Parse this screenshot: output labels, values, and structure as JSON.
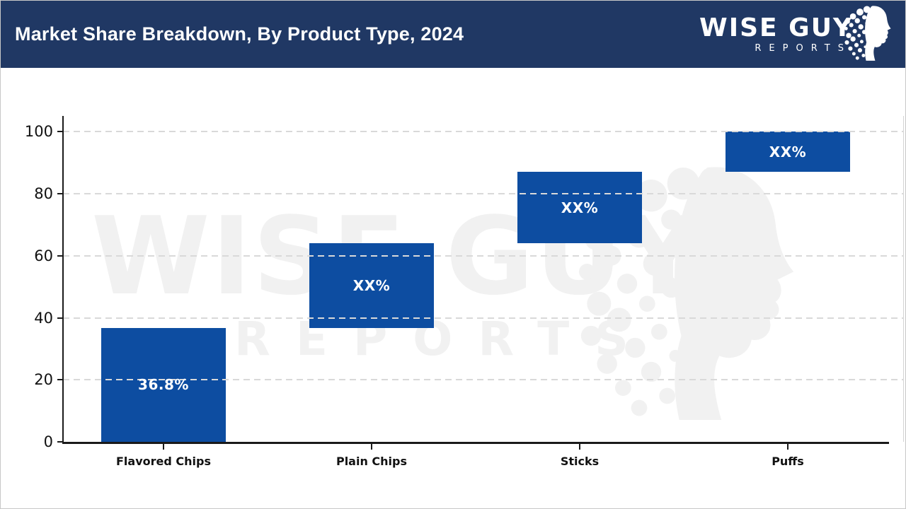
{
  "header": {
    "title": "Market Share Breakdown, By Product Type, 2024",
    "logo": {
      "line1": "WISE GUY",
      "line2": "REPORTS"
    }
  },
  "watermark": {
    "line1": "WISE GUY",
    "line2": "REPORTS"
  },
  "colors": {
    "header_bg": "#203864",
    "bar": "#0d4da1",
    "grid": "#d9d9d9",
    "axis": "#1a1a1a",
    "watermark": "#f1f1f1",
    "bar_label": "#ffffff"
  },
  "chart_data": {
    "type": "waterfall",
    "title": "Market Share Breakdown, By Product Type, 2024",
    "categories": [
      "Flavored Chips",
      "Plain Chips",
      "Sticks",
      "Puffs"
    ],
    "segments": [
      {
        "category": "Flavored Chips",
        "from": 0,
        "to": 36.8,
        "label": "36.8%"
      },
      {
        "category": "Plain Chips",
        "from": 36.8,
        "to": 64,
        "label": "XX%"
      },
      {
        "category": "Sticks",
        "from": 64,
        "to": 87,
        "label": "XX%"
      },
      {
        "category": "Puffs",
        "from": 87,
        "to": 100,
        "label": "XX%"
      }
    ],
    "y_ticks": [
      0,
      20,
      40,
      60,
      80,
      100
    ],
    "ylim": [
      0,
      105
    ],
    "xlabel": "",
    "ylabel": "",
    "legend": null,
    "grid": "horizontal-dashed",
    "grid_above_bars": true,
    "bar_color": "#0d4da1"
  }
}
